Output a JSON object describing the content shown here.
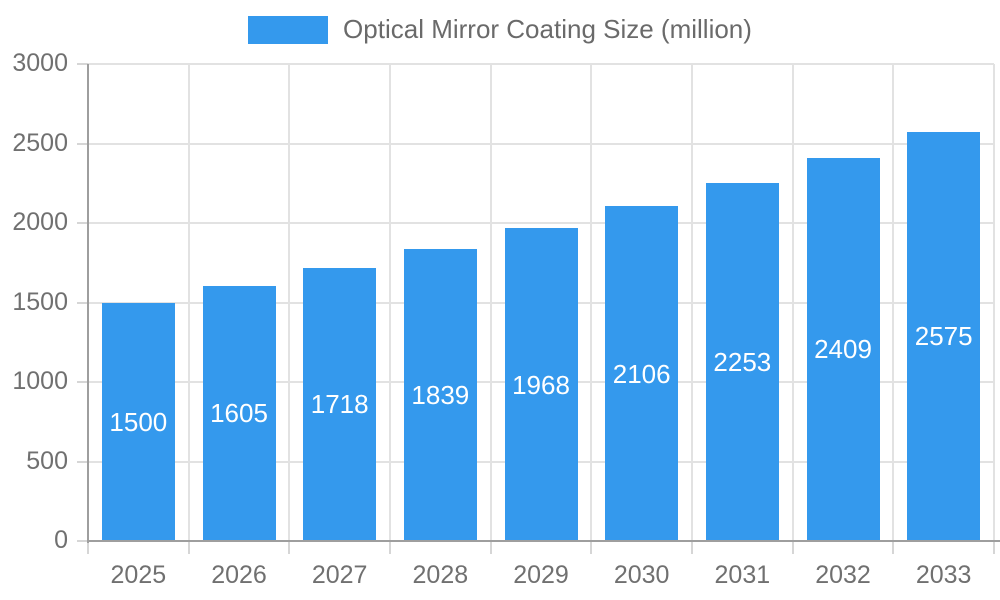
{
  "chart_data": {
    "type": "bar",
    "title": "",
    "legend_label": "Optical Mirror Coating Size (million)",
    "legend_position": "top",
    "categories": [
      "2025",
      "2026",
      "2027",
      "2028",
      "2029",
      "2030",
      "2031",
      "2032",
      "2033"
    ],
    "series": [
      {
        "name": "Optical Mirror Coating Size (million)",
        "values": [
          1500,
          1605,
          1718,
          1839,
          1968,
          2106,
          2253,
          2409,
          2575
        ]
      }
    ],
    "xlabel": "",
    "ylabel": "",
    "ylim": [
      0,
      3000
    ],
    "yticks": [
      0,
      500,
      1000,
      1500,
      2000,
      2500,
      3000
    ],
    "grid": true,
    "value_labels": "inside-center",
    "colors": {
      "bar": "#3499ED",
      "bar_value_text": "#ffffff",
      "axis_tick_text": "#707070",
      "legend_text": "#6a6a6a",
      "gridline": "#e2e2e2",
      "tick_mark": "#d6d6d6",
      "axis_line": "#9e9e9e",
      "background": "#ffffff"
    }
  }
}
